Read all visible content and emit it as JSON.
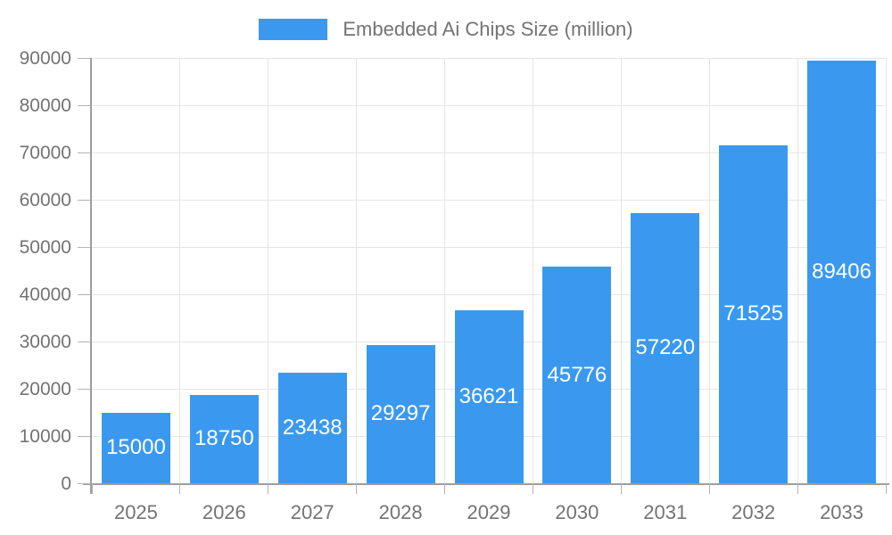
{
  "legend": {
    "label": "Embedded Ai Chips Size (million)"
  },
  "chart_data": {
    "type": "bar",
    "title": "Embedded Ai Chips Size (million)",
    "categories": [
      "2025",
      "2026",
      "2027",
      "2028",
      "2029",
      "2030",
      "2031",
      "2032",
      "2033"
    ],
    "values": [
      15000,
      18750,
      23438,
      29297,
      36621,
      45776,
      57220,
      71525,
      89406
    ],
    "xlabel": "",
    "ylabel": "",
    "ylim": [
      0,
      90000
    ],
    "ytick_step": 10000,
    "ytick_labels": [
      "0",
      "10000",
      "20000",
      "30000",
      "40000",
      "50000",
      "60000",
      "70000",
      "80000",
      "90000"
    ],
    "grid": true,
    "legend_position": "top",
    "value_labels": "inside-center"
  },
  "colors": {
    "bar": "#3A99EE",
    "grid": "#E5E5E5",
    "axis": "#9E9E9E",
    "tick": "#B3B3B3",
    "tick_text": "#737373",
    "value_text": "#FFFFFF"
  }
}
